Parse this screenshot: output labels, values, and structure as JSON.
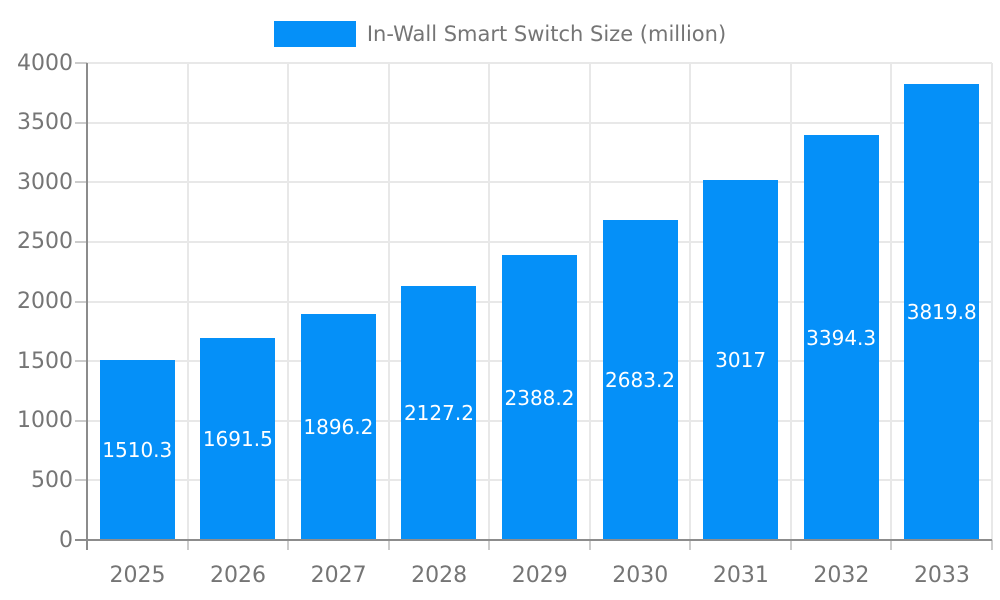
{
  "legend": {
    "label": "In-Wall Smart Switch Size (million)"
  },
  "chart_data": {
    "type": "bar",
    "title": "In-Wall Smart Switch Size (million)",
    "series_name": "In-Wall Smart Switch Size (million)",
    "categories": [
      "2025",
      "2026",
      "2027",
      "2028",
      "2029",
      "2030",
      "2031",
      "2032",
      "2033"
    ],
    "values": [
      1510.3,
      1691.5,
      1896.2,
      2127.2,
      2388.2,
      2683.2,
      3017,
      3394.3,
      3819.8
    ],
    "value_labels": [
      "1510.3",
      "1691.5",
      "1896.2",
      "2127.2",
      "2388.2",
      "2683.2",
      "3017",
      "3394.3",
      "3819.8"
    ],
    "xlabel": "",
    "ylabel": "",
    "ylim": [
      0,
      4000
    ],
    "yticks": [
      0,
      500,
      1000,
      1500,
      2000,
      2500,
      3000,
      3500,
      4000
    ],
    "grid": true,
    "legend_position": "top-center",
    "colors": {
      "bar": "#0590f8",
      "axis_line": "#8c8c8c",
      "tick": "#cccccc",
      "gridline": "#e8e8e8",
      "axis_text": "#757575",
      "value_label_text": "#ffffff",
      "background": "#ffffff"
    }
  }
}
